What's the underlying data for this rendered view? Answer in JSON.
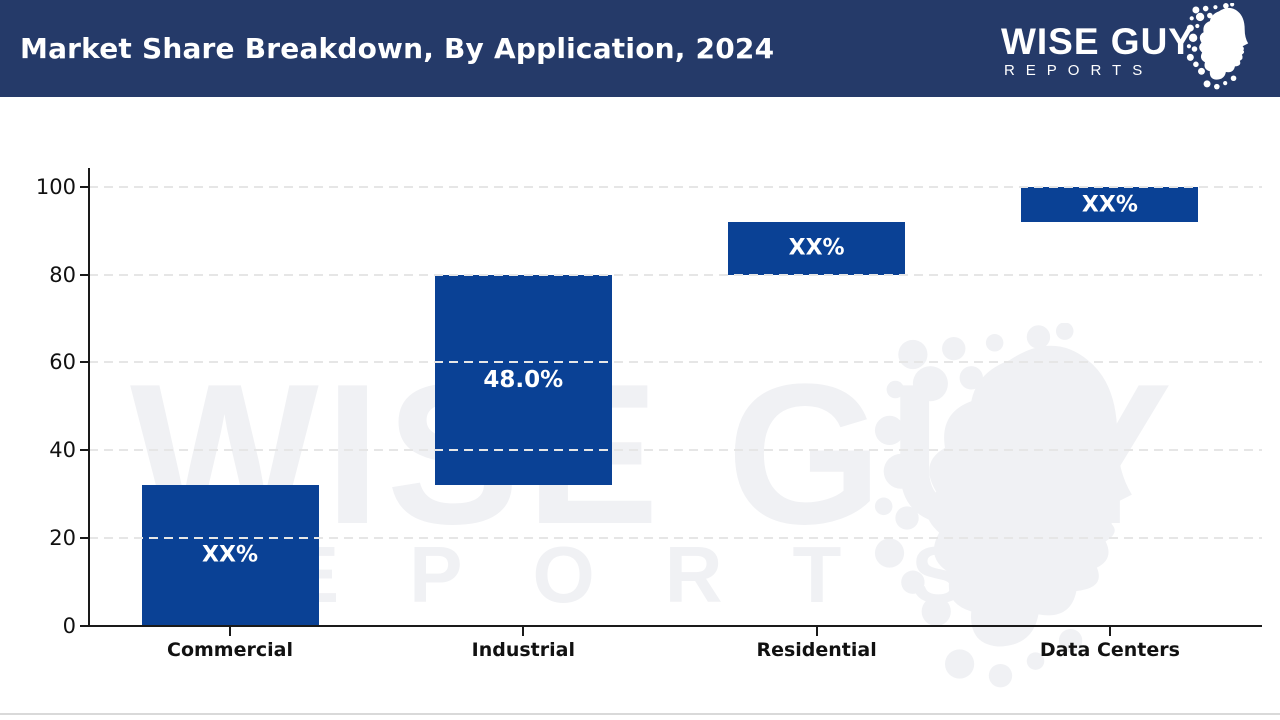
{
  "header": {
    "title": "Market Share Breakdown, By Application, 2024",
    "logo": {
      "line1": "WISE GUY",
      "line2": "REPORTS"
    }
  },
  "watermark": {
    "line1": "WISE GUY",
    "line2": "REPORTS"
  },
  "colors": {
    "header_bg": "#253a69",
    "bar": "#0a4195",
    "bar_label": "#ffffff",
    "grid": "#e6e6e6",
    "axis": "#1a1a1a",
    "watermark": "#f0f1f4"
  },
  "chart_data": {
    "type": "bar",
    "subtype": "waterfall",
    "title": "Market Share Breakdown, By Application, 2024",
    "xlabel": "",
    "ylabel": "",
    "ylim": [
      0,
      100
    ],
    "yticks": [
      0,
      20,
      40,
      60,
      80,
      100
    ],
    "grid": "dashed-horizontal",
    "legend": "none",
    "categories": [
      "Commercial",
      "Industrial",
      "Residential",
      "Data Centers"
    ],
    "bars": [
      {
        "category": "Commercial",
        "start": 0,
        "end": 32,
        "value": 32,
        "label": "XX%"
      },
      {
        "category": "Industrial",
        "start": 32,
        "end": 80,
        "value": 48,
        "label": "48.0%"
      },
      {
        "category": "Residential",
        "start": 80,
        "end": 92,
        "value": 12,
        "label": "XX%"
      },
      {
        "category": "Data Centers",
        "start": 92,
        "end": 100,
        "value": 8,
        "label": "XX%"
      }
    ]
  }
}
